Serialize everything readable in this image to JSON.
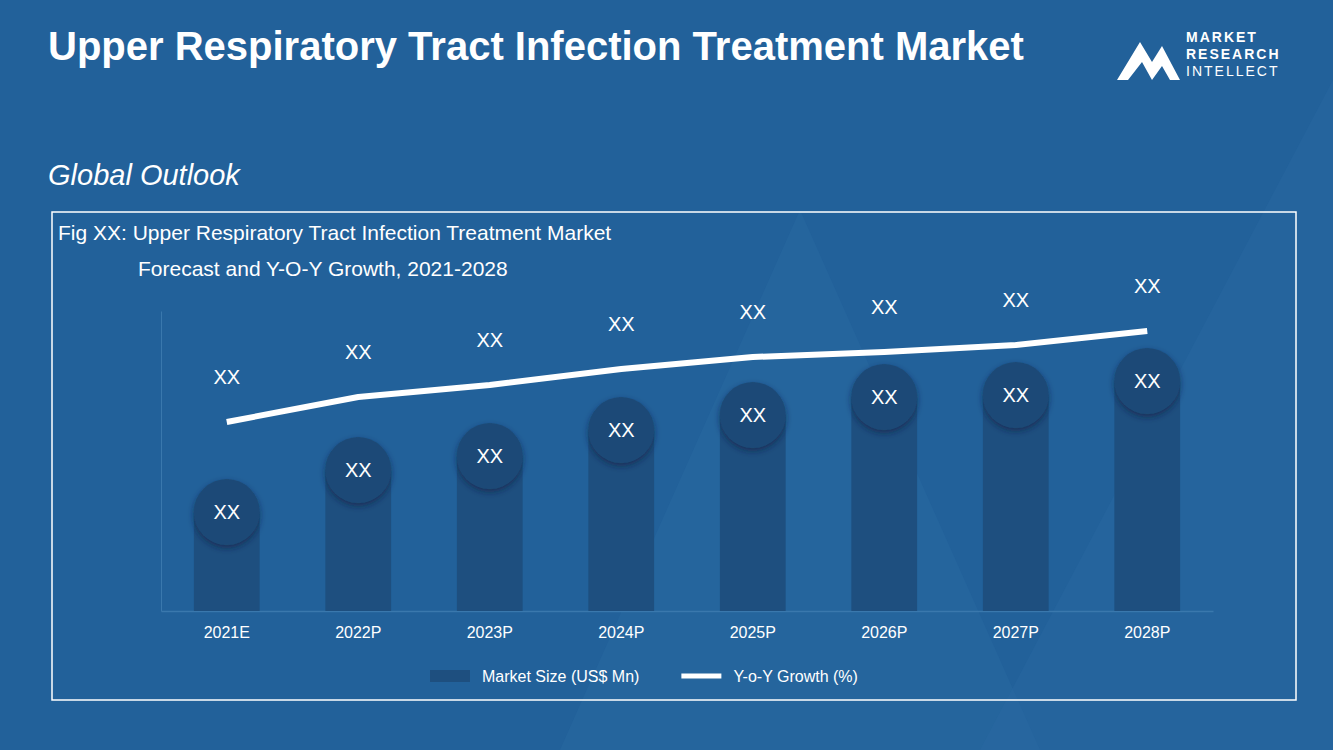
{
  "page": {
    "title": "Upper Respiratory Tract Infection Treatment Market",
    "subtitle": "Global Outlook",
    "logo": [
      "MARKET",
      "RESEARCH",
      "INTELLECT"
    ]
  },
  "chart_data": {
    "type": "bar",
    "title": "Fig XX:  Upper Respiratory Tract Infection Treatment Market",
    "subtitle": "Forecast and Y-O-Y Growth, 2021-2028",
    "categories": [
      "2021E",
      "2022P",
      "2023P",
      "2024P",
      "2025P",
      "2026P",
      "2027P",
      "2028P"
    ],
    "series": [
      {
        "name": "Market Size (US$ Mn)",
        "type": "bar",
        "color": "#1e4f7f",
        "values": [
          99,
          141,
          155,
          181,
          196,
          214,
          216,
          230
        ],
        "value_labels": [
          "XX",
          "XX",
          "XX",
          "XX",
          "XX",
          "XX",
          "XX",
          "XX"
        ]
      },
      {
        "name": "Y-o-Y Growth (%)",
        "type": "line",
        "color": "#ffffff",
        "values": [
          189,
          214,
          226,
          242,
          254,
          259,
          266,
          280
        ],
        "value_labels": [
          "XX",
          "XX",
          "XX",
          "XX",
          "XX",
          "XX",
          "XX",
          "XX"
        ]
      }
    ],
    "ylim": [
      0,
      300
    ],
    "tick_labels": "x",
    "data_labels": true,
    "legend": "bottom"
  }
}
